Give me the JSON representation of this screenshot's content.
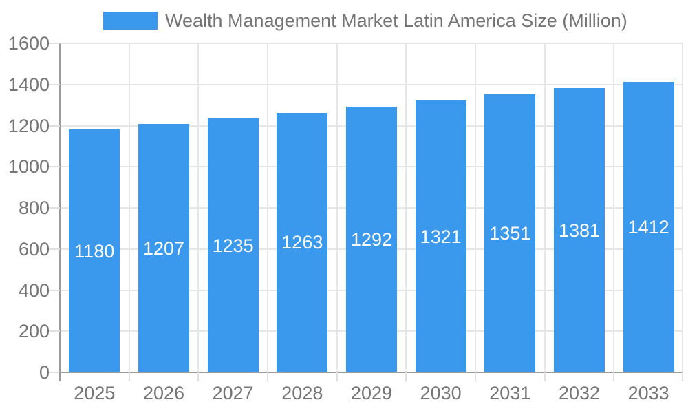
{
  "chart_data": {
    "type": "bar",
    "title": "Wealth Management Market Latin America Size (Million)",
    "categories": [
      "2025",
      "2026",
      "2027",
      "2028",
      "2029",
      "2030",
      "2031",
      "2032",
      "2033"
    ],
    "values": [
      1180,
      1207,
      1235,
      1263,
      1292,
      1321,
      1351,
      1381,
      1412
    ],
    "value_labels": [
      "1180",
      "1207",
      "1235",
      "1263",
      "1292",
      "1321",
      "1351",
      "1381",
      "1412"
    ],
    "xlabel": "",
    "ylabel": "",
    "ylim": [
      0,
      1600
    ],
    "yticks": [
      0,
      200,
      400,
      600,
      800,
      1000,
      1200,
      1400,
      1600
    ],
    "grid": true,
    "legend_position": "top",
    "value_labels_position": "inside-center"
  },
  "colors": {
    "bar": "#3A99EC",
    "grid": "#E6E6E6",
    "axis": "#9C9C9C",
    "tick": "#E0E0E0",
    "axis_text": "#757575",
    "title_text": "#757575",
    "value_text": "#FFFFFF",
    "background": "#FFFFFF"
  }
}
